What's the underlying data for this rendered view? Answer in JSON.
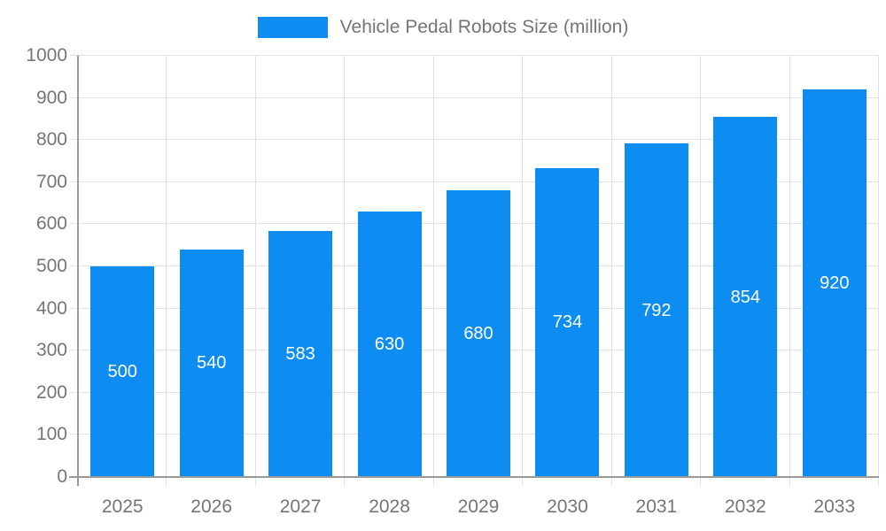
{
  "chart_data": {
    "type": "bar",
    "title": "Vehicle Pedal Robots Size (million)",
    "legend": [
      "Vehicle Pedal Robots Size (million)"
    ],
    "legend_position": "top-center",
    "categories": [
      "2025",
      "2026",
      "2027",
      "2028",
      "2029",
      "2030",
      "2031",
      "2032",
      "2033"
    ],
    "series": [
      {
        "name": "Vehicle Pedal Robots Size (million)",
        "values": [
          500,
          540,
          583,
          630,
          680,
          734,
          792,
          854,
          920
        ]
      }
    ],
    "data_labels_visible": true,
    "xlabel": "",
    "ylabel": "",
    "ylim": [
      0,
      1000
    ],
    "ytick_step": 100,
    "yticks": [
      "0",
      "100",
      "200",
      "300",
      "400",
      "500",
      "600",
      "700",
      "800",
      "900",
      "1000"
    ],
    "grid": true,
    "colors": {
      "bar": "#0d8df2",
      "grid_line": "#e2e2e2",
      "axis_line": "#999999",
      "tick_text": "#757575",
      "legend_text": "#757575",
      "value_label_text": "#ffffff",
      "background": "#ffffff"
    }
  }
}
